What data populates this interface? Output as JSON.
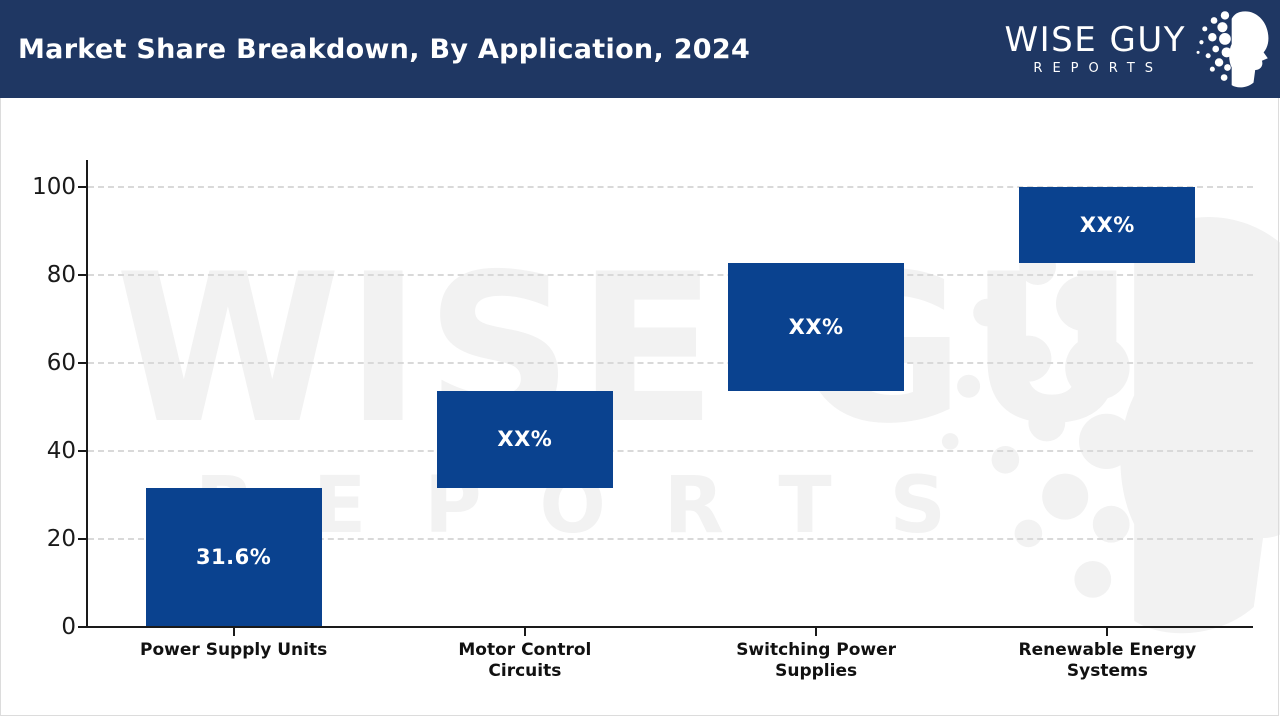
{
  "header": {
    "title": "Market Share Breakdown, By Application, 2024",
    "bg_color": "#1f3763",
    "logo": {
      "name": "WISE GUY",
      "sub": "REPORTS"
    }
  },
  "watermark": {
    "name": "WISE GUY",
    "sub": "REPORTS"
  },
  "chart_data": {
    "type": "bar",
    "subtype": "floating-waterfall",
    "title": "Market Share Breakdown, By Application, 2024",
    "categories": [
      "Power Supply Units",
      "Motor Control Circuits",
      "Switching Power Supplies",
      "Renewable Energy Systems"
    ],
    "categories_display": [
      "Power Supply Units",
      "Motor Control\nCircuits",
      "Switching Power\nSupplies",
      "Renewable Energy\nSystems"
    ],
    "segments": [
      {
        "category": "Power Supply Units",
        "start": 0,
        "end": 31.6,
        "label": "31.6%"
      },
      {
        "category": "Motor Control Circuits",
        "start": 31.6,
        "end": 53.6,
        "label": "XX%"
      },
      {
        "category": "Switching Power Supplies",
        "start": 53.6,
        "end": 82.8,
        "label": "XX%"
      },
      {
        "category": "Renewable Energy Systems",
        "start": 82.8,
        "end": 100,
        "label": "XX%"
      }
    ],
    "ylim": [
      0,
      100
    ],
    "yticks": [
      0,
      20,
      40,
      60,
      80,
      100
    ],
    "grid": {
      "horizontal": true,
      "style": "dashed",
      "color": "#d9d9d9"
    },
    "legend": "none",
    "bar_color": "#0a428f",
    "bar_label_color": "#ffffff",
    "axis_color": "#1a1a1a"
  }
}
